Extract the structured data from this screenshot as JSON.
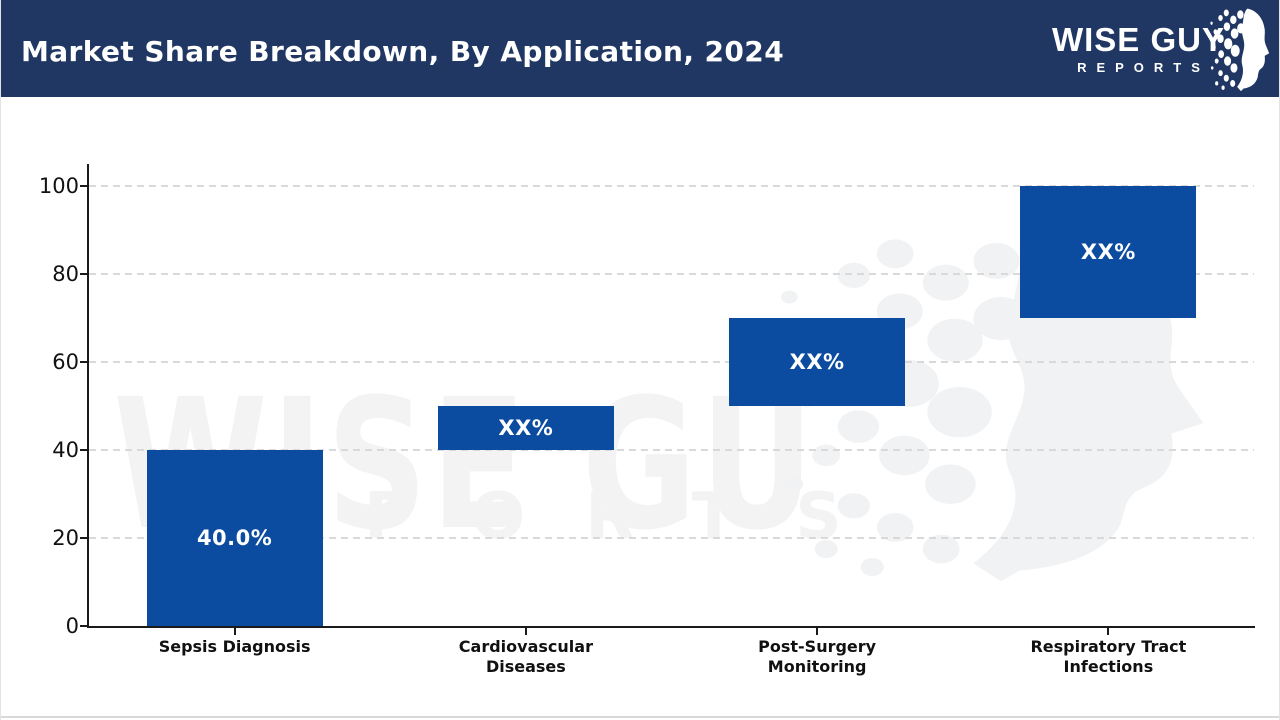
{
  "header": {
    "title": "Market Share Breakdown, By Application, 2024",
    "bg_color": "#203764",
    "logo": {
      "line1": "WISE GUY",
      "line2": "REPORTS"
    }
  },
  "watermark": {
    "line1": "WISE GU",
    "line2": "REPORTS"
  },
  "chart_data": {
    "type": "bar",
    "variant": "waterfall",
    "title": "Market Share Breakdown, By Application, 2024",
    "categories": [
      "Sepsis Diagnosis",
      "Cardiovascular Diseases",
      "Post-Surgery Monitoring",
      "Respiratory Tract Infections"
    ],
    "category_label_lines": [
      [
        "Sepsis Diagnosis"
      ],
      [
        "Cardiovascular",
        "Diseases"
      ],
      [
        "Post-Surgery",
        "Monitoring"
      ],
      [
        "Respiratory Tract",
        "Infections"
      ]
    ],
    "bars": [
      {
        "start": 0,
        "end": 40,
        "label": "40.0%"
      },
      {
        "start": 40,
        "end": 50,
        "label": "XX%"
      },
      {
        "start": 50,
        "end": 70,
        "label": "XX%"
      },
      {
        "start": 70,
        "end": 100,
        "label": "XX%"
      }
    ],
    "yticks": [
      0,
      20,
      40,
      60,
      80,
      100
    ],
    "ylim": [
      0,
      105
    ],
    "bar_color": "#0c4ca0",
    "grid": {
      "axis": "y",
      "style": "dashed",
      "color": "#d9d9d9"
    },
    "legend": null
  }
}
